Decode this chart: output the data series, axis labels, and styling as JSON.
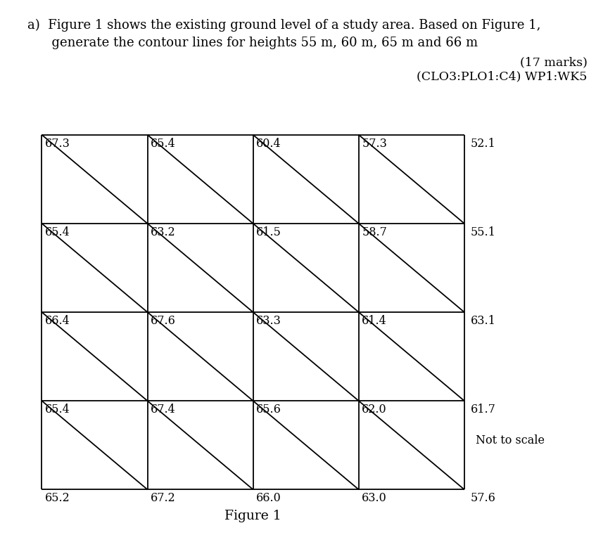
{
  "title_line1": "a)  Figure 1 shows the existing ground level of a study area. Based on Figure 1,",
  "title_line2": "      generate the contour lines for heights 55 m, 60 m, 65 m and 66 m",
  "marks_text": "(17 marks)",
  "clo_text": "(CLO3:PLO1:C4) WP1:WK5",
  "figure_caption": "Figure 1",
  "not_to_scale": "Not to scale",
  "grid_values": [
    [
      67.3,
      65.4,
      60.4,
      57.3,
      52.1
    ],
    [
      65.4,
      63.2,
      61.5,
      58.7,
      55.1
    ],
    [
      66.4,
      67.6,
      63.3,
      61.4,
      63.1
    ],
    [
      65.4,
      67.4,
      65.6,
      62.0,
      61.7
    ],
    [
      65.2,
      67.2,
      66.0,
      63.0,
      57.6
    ]
  ],
  "n_rows": 5,
  "n_cols": 5,
  "bg_color": "#ffffff",
  "text_color": "#000000",
  "line_color": "#000000",
  "grid_color": "#000000",
  "header_fontsize": 13.0,
  "label_fontsize": 11.5,
  "caption_fontsize": 13.5,
  "marks_fontsize": 12.5
}
